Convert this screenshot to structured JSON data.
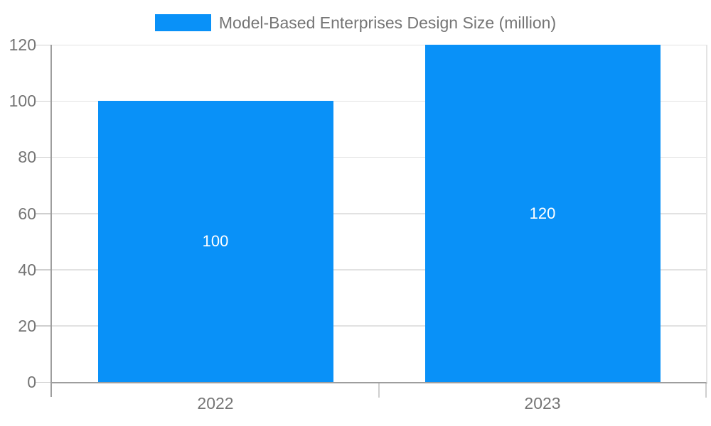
{
  "chart_data": {
    "type": "bar",
    "title": "Model-Based Enterprises Design Size (million)",
    "legend": {
      "label": "Model-Based Enterprises Design Size (million)",
      "position": "top-center"
    },
    "categories": [
      "2022",
      "2023"
    ],
    "series": [
      {
        "name": "Model-Based Enterprises Design Size (million)",
        "values": [
          100,
          120
        ]
      }
    ],
    "value_labels": [
      "100",
      "120"
    ],
    "xlabel": "",
    "ylabel": "",
    "ylim": [
      0,
      120
    ],
    "y_ticks": [
      0,
      20,
      40,
      60,
      80,
      100,
      120
    ],
    "grid": true,
    "colors": {
      "bar": "#0991f8",
      "value_label": "#ffffff",
      "axis": "#9e9e9e",
      "gridline": "#e2e2e2",
      "tick": "#cfcfcf",
      "text": "#757575",
      "background": "#ffffff"
    }
  }
}
